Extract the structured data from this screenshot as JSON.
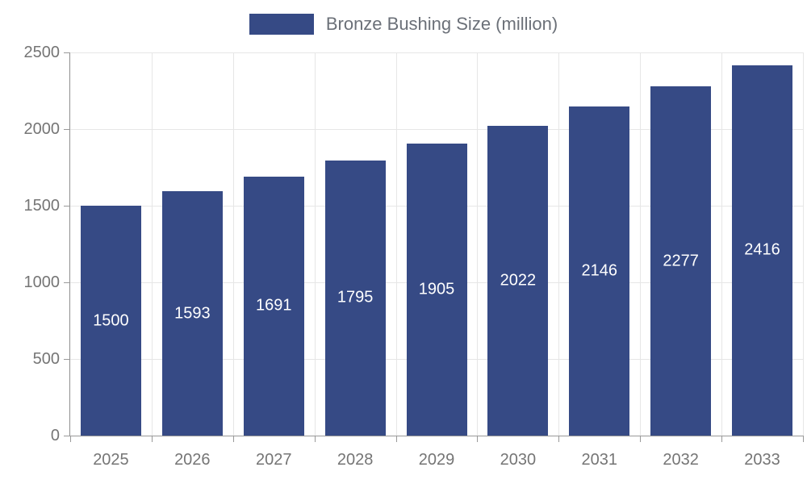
{
  "legend": {
    "label": "Bronze Bushing Size (million)"
  },
  "colors": {
    "bar": "#364a85",
    "grid": "#e6e6e6",
    "axis": "#999999",
    "tick_text": "#757575",
    "legend_text": "#6b7078",
    "value_label": "#ffffff",
    "background": "#ffffff"
  },
  "chart_data": {
    "type": "bar",
    "title": "",
    "categories": [
      "2025",
      "2026",
      "2027",
      "2028",
      "2029",
      "2030",
      "2031",
      "2032",
      "2033"
    ],
    "series": [
      {
        "name": "Bronze Bushing Size (million)",
        "values": [
          1500,
          1593,
          1691,
          1795,
          1905,
          2022,
          2146,
          2277,
          2416
        ]
      }
    ],
    "value_labels_shown": true,
    "value_label_position": "inside-center",
    "xlabel": "",
    "ylabel": "",
    "ylim": [
      0,
      2500
    ],
    "ytick_interval": 500,
    "ytick_labels": [
      "0",
      "500",
      "1000",
      "1500",
      "2000",
      "2500"
    ],
    "grid": true,
    "legend_position": "top-center"
  }
}
